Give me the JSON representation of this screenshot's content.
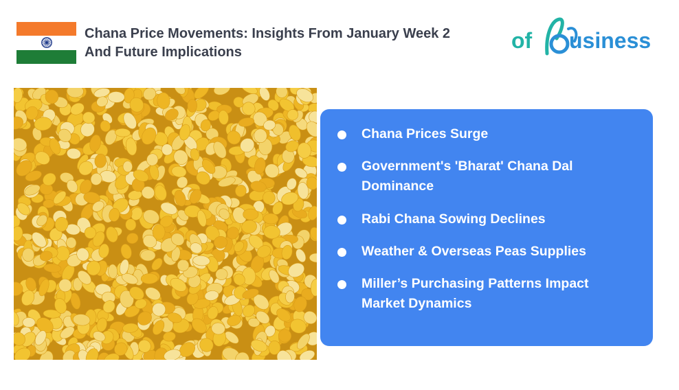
{
  "header": {
    "title_line1": "Chana Price Movements: Insights From January Week 2",
    "title_line2": "And Future Implications"
  },
  "logo": {
    "text_prefix": "of",
    "text_suffix": "usiness",
    "colors": {
      "teal": "#22b3a6",
      "blue": "#2a8fd6"
    }
  },
  "flag": {
    "name": "india-flag",
    "colors": {
      "saffron": "#f47a2b",
      "white": "#ffffff",
      "green": "#1e7d37",
      "chakra": "#1f3a8a"
    }
  },
  "photo": {
    "name": "chana-dal-photo",
    "colors": {
      "base": "#e8b22a",
      "grain": "#f2c431",
      "light": "#f7e39a"
    }
  },
  "card": {
    "background": "#4285f0",
    "items": [
      {
        "line1": "Chana Prices Surge",
        "line2": ""
      },
      {
        "line1": "Government's 'Bharat' Chana Dal",
        "line2": "Dominance"
      },
      {
        "line1": "Rabi Chana Sowing Declines",
        "line2": ""
      },
      {
        "line1": "Weather & Overseas Peas Supplies",
        "line2": ""
      },
      {
        "line1": "Miller’s Purchasing Patterns Impact",
        "line2": "Market Dynamics"
      }
    ]
  }
}
